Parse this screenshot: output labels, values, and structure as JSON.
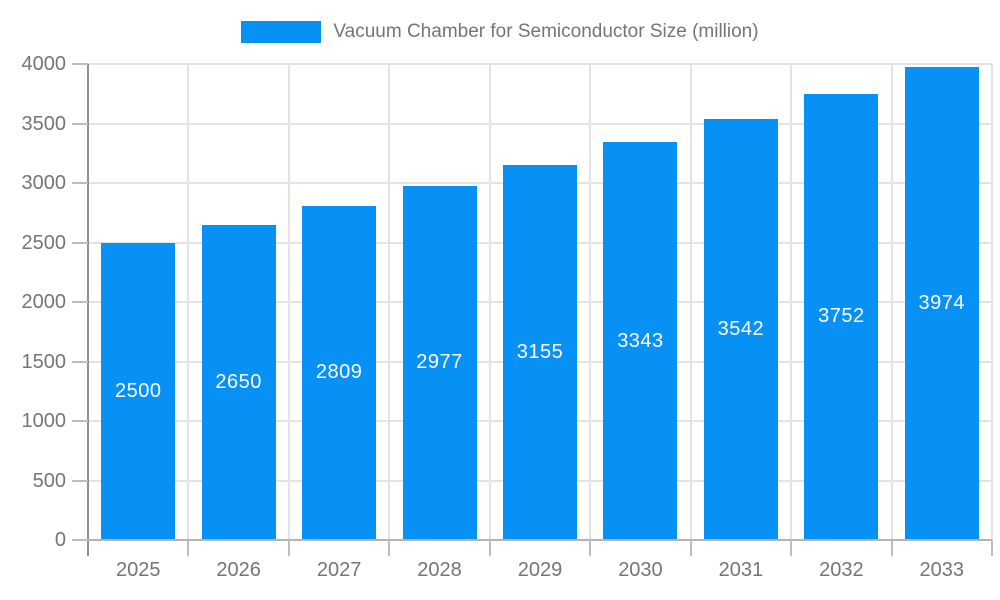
{
  "legend": {
    "label": "Vacuum Chamber for Semiconductor Size (million)"
  },
  "chart_data": {
    "type": "bar",
    "title": "Vacuum Chamber for Semiconductor Size (million)",
    "categories": [
      "2025",
      "2026",
      "2027",
      "2028",
      "2029",
      "2030",
      "2031",
      "2032",
      "2033"
    ],
    "series": [
      {
        "name": "Vacuum Chamber for Semiconductor Size (million)",
        "values": [
          2500,
          2650,
          2809,
          2977,
          3155,
          3343,
          3542,
          3752,
          3974
        ]
      }
    ],
    "xlabel": "",
    "ylabel": "",
    "ylim": [
      0,
      4000
    ],
    "ytick_step": 500,
    "yticks": [
      0,
      500,
      1000,
      1500,
      2000,
      2500,
      3000,
      3500,
      4000
    ],
    "grid": true,
    "legend_position": "top-center",
    "value_labels": "inside-middle"
  },
  "colors": {
    "bar": "#0891f5",
    "value_label": "#ffffff",
    "axis_text": "#757575",
    "gridline": "#e3e3e3",
    "axis_line": "#8f8f8f",
    "tick": "#bdbdbd",
    "baseline": "#b3b3b3",
    "background": "#ffffff"
  }
}
